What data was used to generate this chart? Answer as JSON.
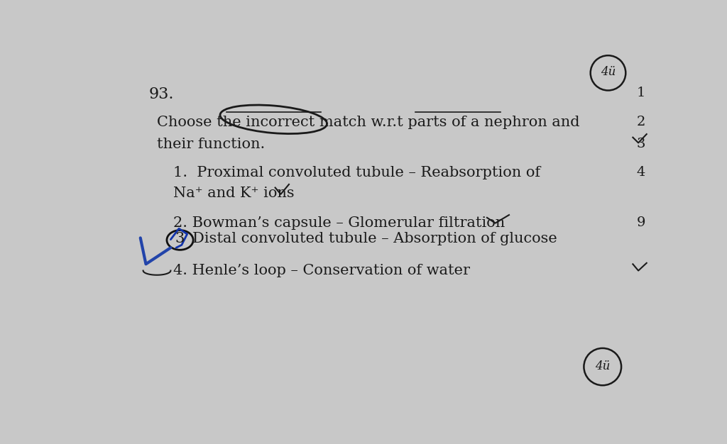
{
  "background_color": "#c8c8c8",
  "font_color": "#1a1a1a",
  "question_number": "93.",
  "line1": "Choose the incorrect match w.r.t parts of a nephron and",
  "line2": "their function.",
  "opt1a": "1.  Proximal convoluted tubule – Reabsorption of",
  "opt1b": "Na⁺ and K⁺ ions",
  "opt2": "2. Bowman’s capsule – Glomerular filtration",
  "opt3": "Distal convoluted tubule – Absorption of glucose",
  "opt4": "4. Henle’s loop – Conservation of water",
  "right_nums": [
    "1",
    "2",
    "3",
    "4",
    "9"
  ]
}
